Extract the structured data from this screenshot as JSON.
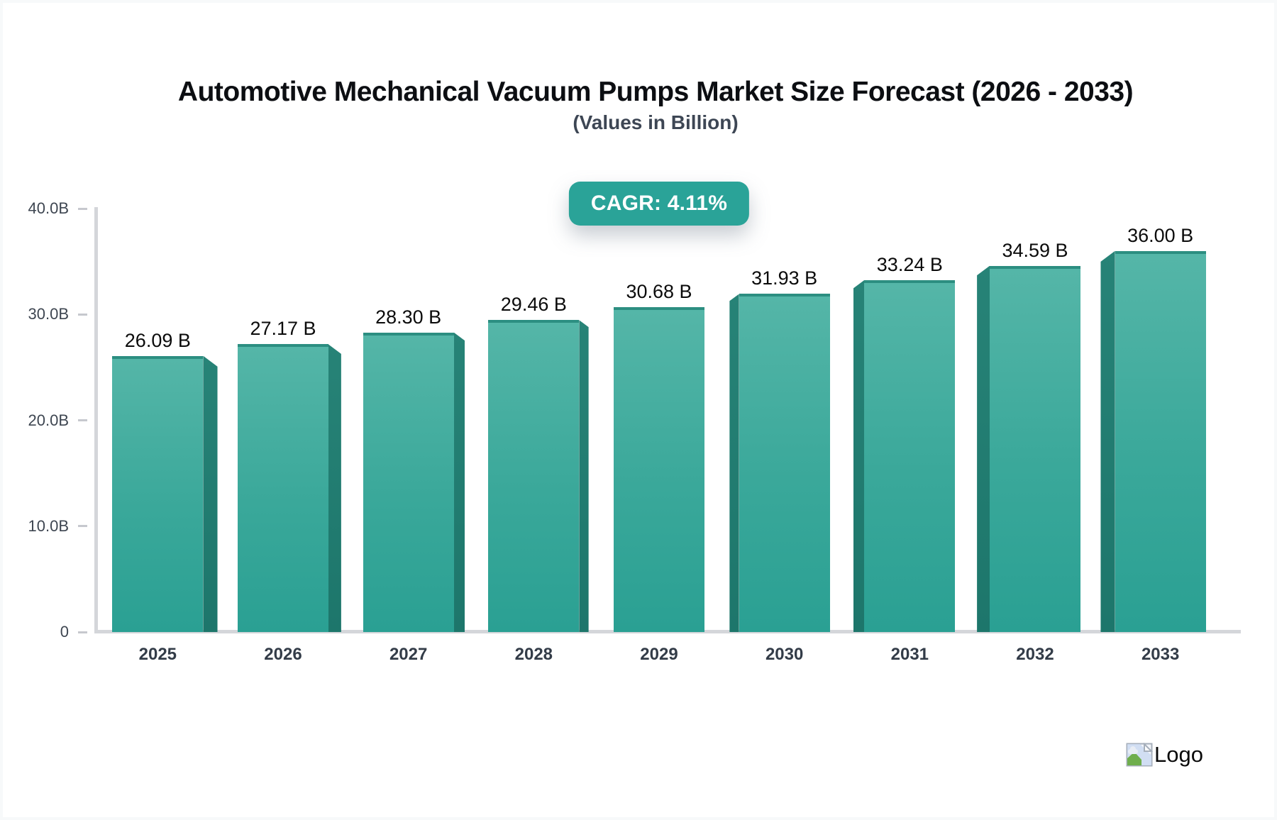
{
  "header": {
    "title": "Automotive Mechanical Vacuum Pumps Market Size Forecast (2026 - 2033)",
    "subtitle": "(Values in Billion)",
    "cagr_label": "CAGR: 4.11%"
  },
  "chart_data": {
    "type": "bar",
    "style": "3d-perspective-columns",
    "title": "Automotive Mechanical Vacuum Pumps Market Size Forecast (2026 - 2033)",
    "subtitle": "(Values in Billion)",
    "cagr": "4.11%",
    "categories": [
      "2025",
      "2026",
      "2027",
      "2028",
      "2029",
      "2030",
      "2031",
      "2032",
      "2033"
    ],
    "values": [
      26.09,
      27.17,
      28.3,
      29.46,
      30.68,
      31.93,
      33.24,
      34.59,
      36.0
    ],
    "value_labels": [
      "26.09 B",
      "27.17 B",
      "28.30 B",
      "29.46 B",
      "30.68 B",
      "31.93 B",
      "33.24 B",
      "34.59 B",
      "36.00 B"
    ],
    "xlabel": "",
    "ylabel": "",
    "ylim": [
      0,
      40
    ],
    "yticks": [
      {
        "value": 40,
        "label": "40.0B"
      },
      {
        "value": 30,
        "label": "30.0B"
      },
      {
        "value": 20,
        "label": "20.0B"
      },
      {
        "value": 10,
        "label": "10.0B"
      },
      {
        "value": 0,
        "label": "0"
      }
    ],
    "grid": "off",
    "legend": "none"
  },
  "footer": {
    "logo_text": "Logo"
  },
  "colors": {
    "title_color": "#0c0e12",
    "subtitle_color": "#3d4654",
    "badge_bg": "#2aa398",
    "badge_text": "#ffffff",
    "bar_top": "#55b6a8",
    "bar_mid": "#3aa89a",
    "bar_bottom": "#2aa093",
    "bar_edge": "#2c8e81",
    "bar_side_top": "#278377",
    "bar_side_bottom": "#1d766b",
    "axis_line": "#d4d6da",
    "tick_mark": "#c6c8ce",
    "tick_label": "#3e4651",
    "x_label": "#333c48",
    "value_label": "#0b0b0b"
  }
}
